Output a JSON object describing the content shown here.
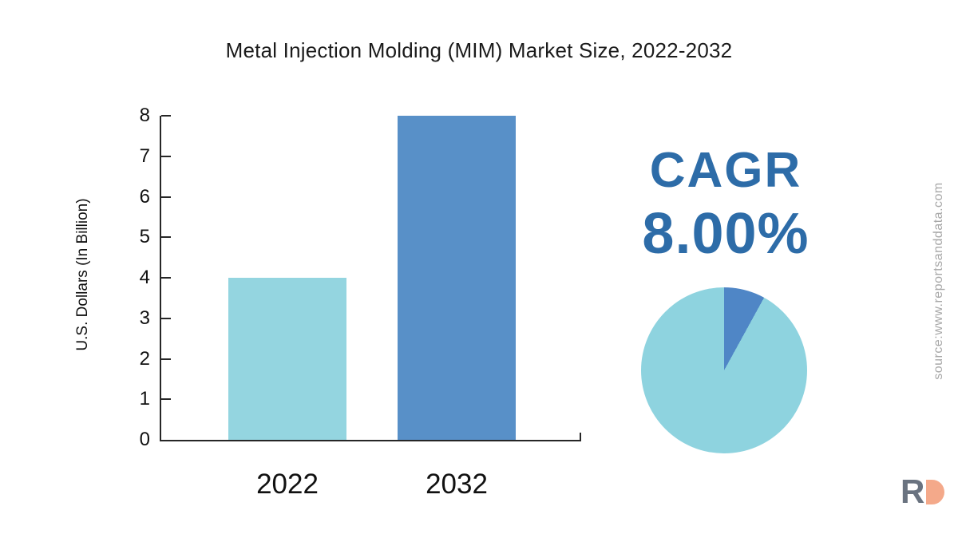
{
  "title": "Metal Injection Molding (MIM) Market Size, 2022-2032",
  "chart_data": [
    {
      "type": "bar",
      "title": "Metal Injection Molding (MIM) Market Size, 2022-2032",
      "categories": [
        "2022",
        "2032"
      ],
      "values": [
        4,
        8
      ],
      "bar_colors": [
        "#94d5e0",
        "#5890c8"
      ],
      "xlabel": "",
      "ylabel": "U.S. Dollars (In Billion)",
      "ylim": [
        0,
        8
      ],
      "yticks": [
        0,
        1,
        2,
        3,
        4,
        5,
        6,
        7,
        8
      ],
      "grid": false,
      "legend": "none"
    },
    {
      "type": "pie",
      "title": "CAGR 8.00%",
      "slices": [
        {
          "label": "CAGR",
          "value": 8,
          "color": "#4f86c6"
        },
        {
          "label": "remainder",
          "value": 92,
          "color": "#8ed3df"
        }
      ],
      "start_angle_deg": 0,
      "direction": "clockwise",
      "legend": "none"
    }
  ],
  "cagr": {
    "label": "CAGR",
    "value": "8.00%",
    "color": "#2d6ca8"
  },
  "source": {
    "text": "source:www.reportsanddata.com"
  },
  "logo": {
    "r_text": "R",
    "r_color": "#6a7380",
    "d_color": "#f4a98a"
  }
}
